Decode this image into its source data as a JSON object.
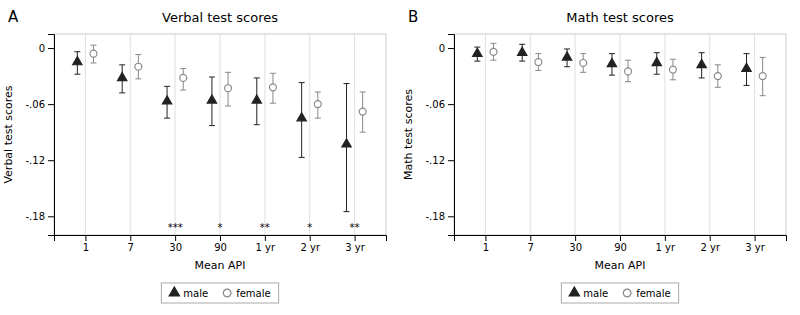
{
  "chart_data": [
    {
      "type": "errorbar",
      "panel_label": "A",
      "title": "Verbal test scores",
      "x_label": "Mean API",
      "y_label": "Verbal test scores",
      "categories": [
        "1",
        "7",
        "30",
        "90",
        "1 yr",
        "2 yr",
        "3 yr"
      ],
      "series": [
        {
          "name": "male",
          "color": "#222222",
          "marker": "triangle",
          "values": [
            -0.015,
            -0.032,
            -0.057,
            -0.056,
            -0.056,
            -0.075,
            -0.103
          ],
          "ci_lo": [
            -0.028,
            -0.048,
            -0.075,
            -0.083,
            -0.082,
            -0.117,
            -0.175
          ],
          "ci_hi": [
            -0.004,
            -0.018,
            -0.041,
            -0.031,
            -0.032,
            -0.037,
            -0.038
          ]
        },
        {
          "name": "female",
          "color": "#888888",
          "marker": "circle-open",
          "values": [
            -0.006,
            -0.02,
            -0.032,
            -0.043,
            -0.042,
            -0.06,
            -0.068
          ],
          "ci_lo": [
            -0.016,
            -0.033,
            -0.045,
            -0.062,
            -0.059,
            -0.075,
            -0.09
          ],
          "ci_hi": [
            0.003,
            -0.007,
            -0.022,
            -0.026,
            -0.027,
            -0.047,
            -0.047
          ]
        }
      ],
      "annotations": [
        {
          "category": "30",
          "text": "***"
        },
        {
          "category": "90",
          "text": "*"
        },
        {
          "category": "1 yr",
          "text": "**"
        },
        {
          "category": "2 yr",
          "text": "*"
        },
        {
          "category": "3 yr",
          "text": "**"
        }
      ],
      "ylim": [
        -0.2,
        0.015
      ],
      "yticks": [
        0,
        {
          "value": -0.06,
          "label": "-.06"
        },
        {
          "value": -0.12,
          "label": "-.12"
        },
        {
          "value": -0.18,
          "label": "-.18"
        }
      ],
      "grid": true,
      "legend": "bottom"
    },
    {
      "type": "errorbar",
      "panel_label": "B",
      "title": "Math test scores",
      "x_label": "Mean API",
      "y_label": "Math test scores",
      "categories": [
        "1",
        "7",
        "30",
        "90",
        "1 yr",
        "2 yr",
        "3 yr"
      ],
      "series": [
        {
          "name": "male",
          "color": "#222222",
          "marker": "triangle",
          "values": [
            -0.006,
            -0.005,
            -0.01,
            -0.017,
            -0.016,
            -0.018,
            -0.022
          ],
          "ci_lo": [
            -0.014,
            -0.014,
            -0.02,
            -0.029,
            -0.028,
            -0.032,
            -0.04
          ],
          "ci_hi": [
            0.001,
            0.004,
            -0.001,
            -0.006,
            -0.005,
            -0.005,
            -0.006
          ]
        },
        {
          "name": "female",
          "color": "#888888",
          "marker": "circle-open",
          "values": [
            -0.004,
            -0.015,
            -0.016,
            -0.025,
            -0.023,
            -0.03,
            -0.03
          ],
          "ci_lo": [
            -0.013,
            -0.024,
            -0.026,
            -0.036,
            -0.034,
            -0.042,
            -0.051
          ],
          "ci_hi": [
            0.005,
            -0.006,
            -0.006,
            -0.013,
            -0.012,
            -0.018,
            -0.01
          ]
        }
      ],
      "ylim": [
        -0.2,
        0.015
      ],
      "yticks": [
        0,
        {
          "value": -0.06,
          "label": "-.06"
        },
        {
          "value": -0.12,
          "label": "-.12"
        },
        {
          "value": -0.18,
          "label": "-.18"
        }
      ],
      "grid": true,
      "legend": "bottom"
    }
  ]
}
